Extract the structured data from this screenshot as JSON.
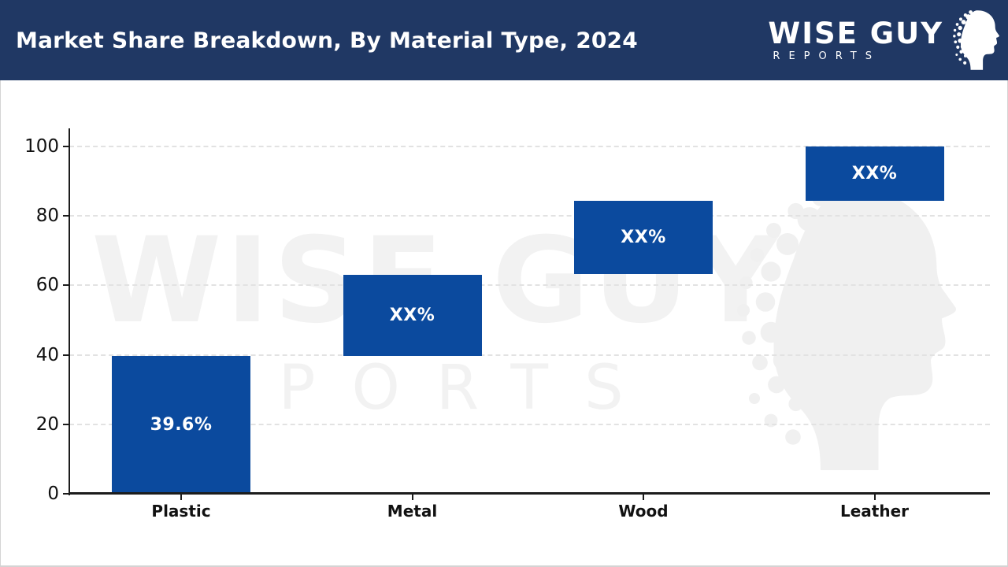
{
  "header": {
    "title": "Market Share Breakdown, By Material Type, 2024",
    "logo": {
      "line1": "WISE GUY",
      "line2": "REPORTS"
    }
  },
  "watermark": {
    "line1": "WISE GUY",
    "line2": "REPORTS"
  },
  "chart_data": {
    "type": "bar",
    "subtype": "waterfall",
    "title": "Market Share Breakdown, By Material Type, 2024",
    "categories": [
      "Plastic",
      "Metal",
      "Wood",
      "Leather"
    ],
    "series": [
      {
        "name": "Market share (%)",
        "segments": [
          {
            "category": "Plastic",
            "start": 0,
            "end": 39.6,
            "label": "39.6%"
          },
          {
            "category": "Metal",
            "start": 39.6,
            "end": 63.1,
            "label": "XX%"
          },
          {
            "category": "Wood",
            "start": 63.3,
            "end": 84.4,
            "label": "XX%"
          },
          {
            "category": "Leather",
            "start": 84.3,
            "end": 100,
            "label": "XX%"
          }
        ]
      }
    ],
    "xlabel": "",
    "ylabel": "",
    "ylim": [
      0,
      100
    ],
    "yticks": [
      0,
      20,
      40,
      60,
      80,
      100
    ],
    "grid": "horizontal-dashed",
    "legend": null,
    "bar_color": "#0b4a9e",
    "bar_label_color": "#ffffff"
  },
  "colors": {
    "header_bg": "#203864",
    "bar": "#0b4a9e",
    "watermark_gray": "#f2f2f2",
    "gridline": "#e2e2e2",
    "axis": "#1c1c1c",
    "frame": "#d4d4d4"
  },
  "icons": {
    "logo_face": "wiseguy-dotted-face-icon"
  }
}
